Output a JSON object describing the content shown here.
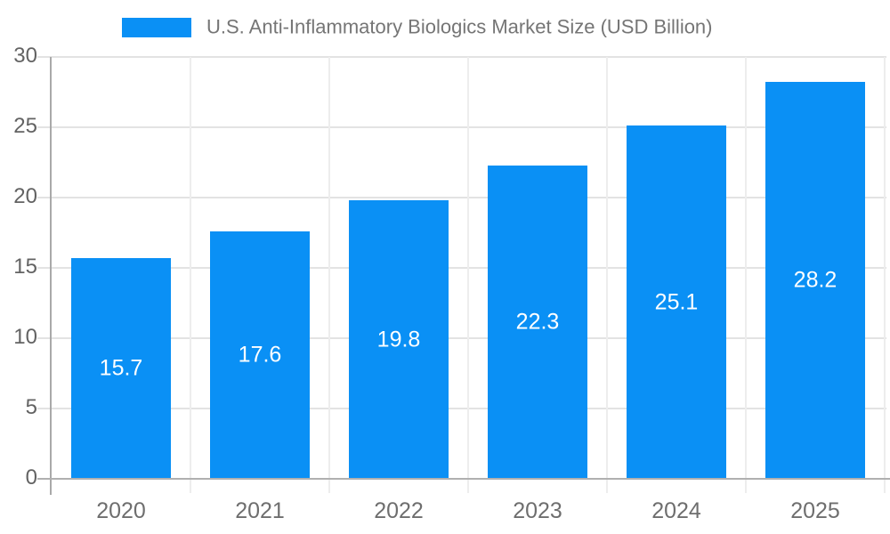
{
  "chart_data": {
    "type": "bar",
    "title": "U.S. Anti-Inflammatory Biologics Market Size (USD Billion)",
    "categories": [
      "2020",
      "2021",
      "2022",
      "2023",
      "2024",
      "2025"
    ],
    "values": [
      15.7,
      17.6,
      19.8,
      22.3,
      25.1,
      28.2
    ],
    "value_labels": [
      "15.7",
      "17.6",
      "19.8",
      "22.3",
      "25.1",
      "28.2"
    ],
    "xlabel": "",
    "ylabel": "",
    "ylim": [
      0,
      30
    ],
    "yticks": [
      0,
      5,
      10,
      15,
      20,
      25,
      30
    ],
    "grid": "on",
    "legend_position": "top-center",
    "bar_color": "#0a90f5",
    "value_label_color": "#ffffff"
  }
}
